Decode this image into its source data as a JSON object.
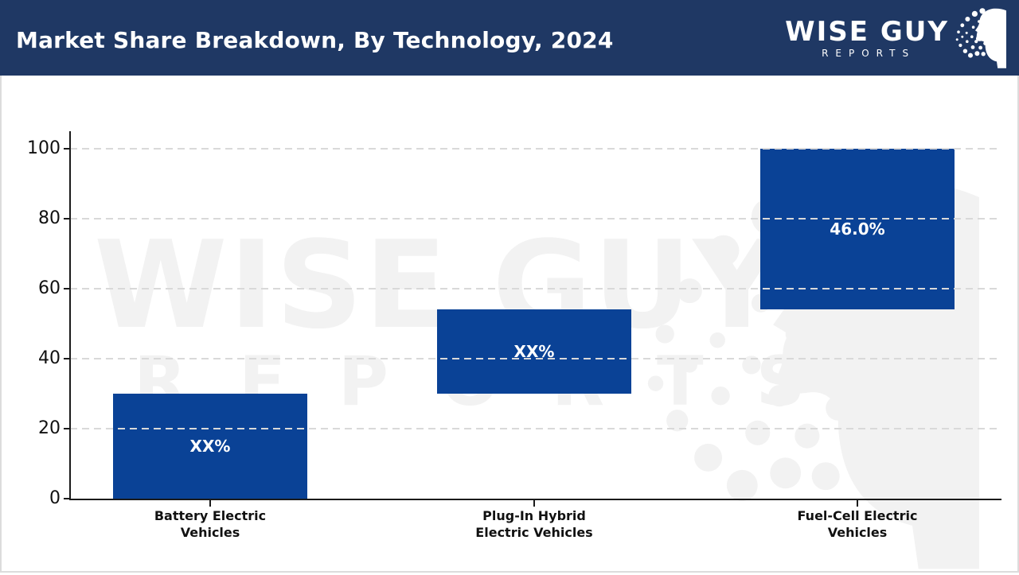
{
  "header": {
    "title": "Market Share Breakdown, By Technology, 2024",
    "bg_color": "#1f3864"
  },
  "logo": {
    "line1": "WISE GUY",
    "line2": "REPORTS"
  },
  "watermark": {
    "line1": "WISE GUY",
    "line2": "R E P O R T S"
  },
  "chart_data": {
    "type": "bar",
    "subtype": "stacked-waterfall-segments",
    "title": "Market Share Breakdown, By Technology, 2024",
    "categories": [
      "Battery Electric Vehicles",
      "Plug-In Hybrid Electric Vehicles",
      "Fuel-Cell Electric Vehicles"
    ],
    "category_lines": [
      [
        "Battery Electric",
        "Vehicles"
      ],
      [
        "Plug-In Hybrid",
        "Electric Vehicles"
      ],
      [
        "Fuel-Cell Electric",
        "Vehicles"
      ]
    ],
    "segments": [
      {
        "category": "Battery Electric Vehicles",
        "start": 0,
        "end": 30,
        "value": 30,
        "label": "XX%"
      },
      {
        "category": "Plug-In Hybrid Electric Vehicles",
        "start": 30,
        "end": 54,
        "value": 24,
        "label": "XX%"
      },
      {
        "category": "Fuel-Cell Electric Vehicles",
        "start": 54,
        "end": 100,
        "value": 46,
        "label": "46.0%"
      }
    ],
    "ylim": [
      0,
      100
    ],
    "yticks": [
      0,
      20,
      40,
      60,
      80,
      100
    ],
    "xlabel": "",
    "ylabel": "",
    "grid": "horizontal-dashed",
    "grid_over_bars": true,
    "legend": "none",
    "bar_color": "#0a4296",
    "bar_label_color": "#ffffff",
    "axis_color": "#1a1a1a",
    "grid_color": "#d9d9d9"
  }
}
